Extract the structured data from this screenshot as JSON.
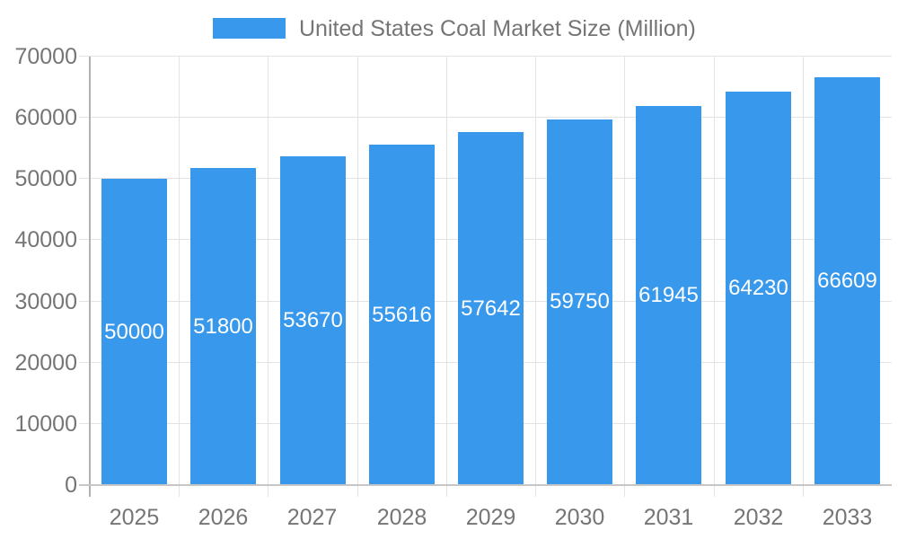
{
  "legend": {
    "label": "United States Coal Market Size (Million)"
  },
  "chart_data": {
    "type": "bar",
    "title": "United States Coal Market Size (Million)",
    "categories": [
      "2025",
      "2026",
      "2027",
      "2028",
      "2029",
      "2030",
      "2031",
      "2032",
      "2033"
    ],
    "values": [
      50000,
      51800,
      53670,
      55616,
      57642,
      59750,
      61945,
      64230,
      66609
    ],
    "xlabel": "",
    "ylabel": "",
    "ylim": [
      0,
      70000
    ],
    "yticks": [
      0,
      10000,
      20000,
      30000,
      40000,
      50000,
      60000,
      70000
    ],
    "grid": true,
    "legend_position": "top",
    "bar_labels_visible": true,
    "colors": {
      "bar": "#3898EC",
      "bar_label": "#FFFFFF",
      "axis_text": "#757575",
      "legend_text": "#757575",
      "gridline": "#E3E3E3",
      "axis_line_y": "#B0B0B0",
      "axis_line_x": "#C7C7C7"
    }
  }
}
